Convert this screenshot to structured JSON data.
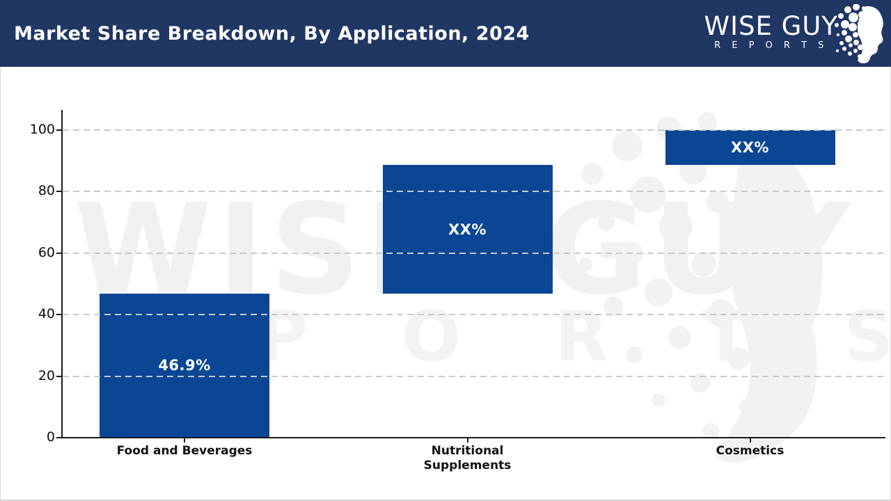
{
  "header": {
    "title": "Market Share Breakdown, By Application, 2024",
    "bg_color": "#203764",
    "logo": {
      "line1": "WISE GUY",
      "line2": "R E P O R T S",
      "head_icon": "dotted-head-profile"
    }
  },
  "watermark": {
    "line1": "WISE GUY",
    "line2": "E P O R T S",
    "head_icon": "dotted-head-profile-light"
  },
  "chart_data": {
    "type": "bar",
    "subtype": "waterfall-stacked-percentage",
    "title": "Market Share Breakdown, By Application, 2024",
    "categories": [
      "Food and Beverages",
      "Nutritional\nSupplements",
      "Cosmetics"
    ],
    "segments": [
      {
        "category": "Food and Beverages",
        "label": "46.9%",
        "start": 0,
        "end": 46.9
      },
      {
        "category": "Nutritional Supplements",
        "label": "XX%",
        "start": 46.9,
        "end": 88.6
      },
      {
        "category": "Cosmetics",
        "label": "XX%",
        "start": 88.6,
        "end": 100
      }
    ],
    "visible_value_labels": [
      "46.9%",
      "XX%",
      "XX%"
    ],
    "ylim": [
      0,
      100
    ],
    "yticks": [
      0,
      20,
      40,
      60,
      80,
      100
    ],
    "grid": "horizontal dashed, drawn above bars",
    "legend": "none",
    "xlabel": "",
    "ylabel": "",
    "bar_color": "#0a4694",
    "bar_label_color": "#ffffff",
    "axis_color": "#1a1a1a",
    "gridline_color": "#c9c9c9"
  }
}
